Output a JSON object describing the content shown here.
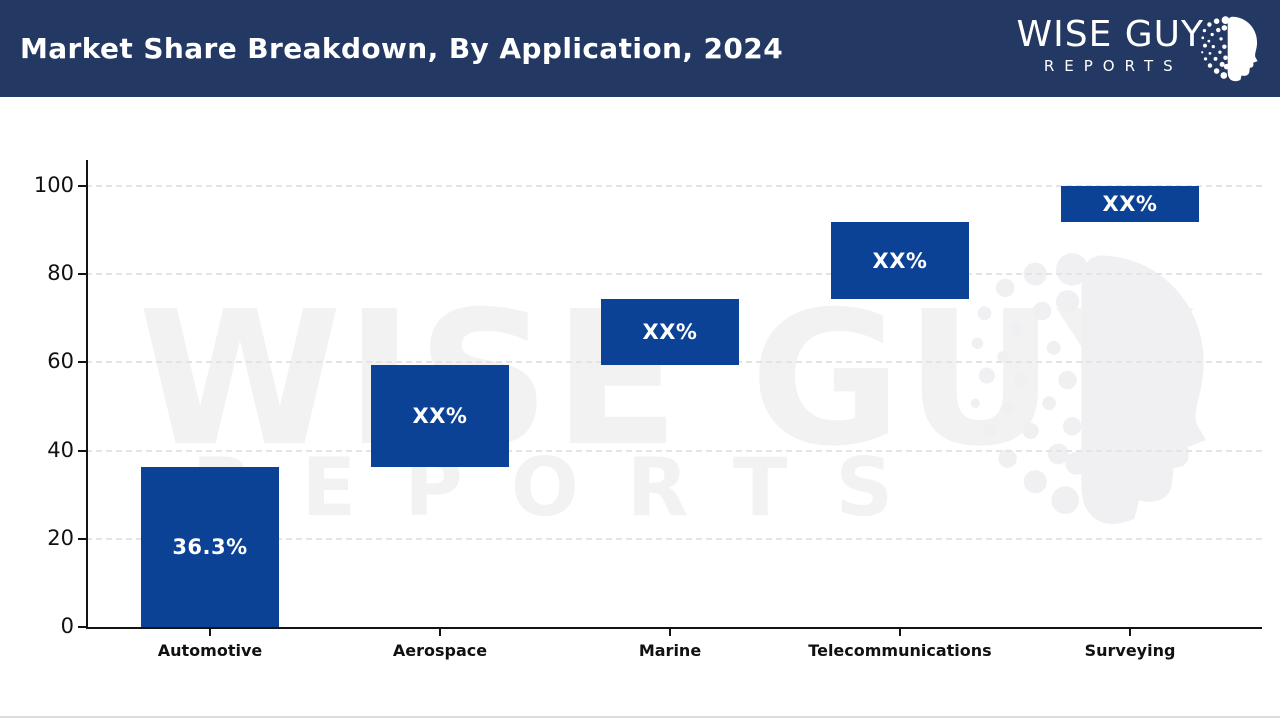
{
  "header": {
    "title": "Market Share Breakdown, By Application, 2024",
    "bg_color": "#233862",
    "logo": {
      "line1": "WISE GUY",
      "line2": "REPORTS"
    }
  },
  "watermark": {
    "line1": "WISE GUY",
    "line2": "REPORTS"
  },
  "chart_data": {
    "type": "bar",
    "subtype": "waterfall",
    "title": "Market Share Breakdown, By Application, 2024",
    "categories": [
      "Automotive",
      "Aerospace",
      "Marine",
      "Telecommunications",
      "Surveying"
    ],
    "segments": [
      {
        "category": "Automotive",
        "start": 0,
        "end": 36.3,
        "label": "36.3%"
      },
      {
        "category": "Aerospace",
        "start": 36.3,
        "end": 59.4,
        "label": "XX%"
      },
      {
        "category": "Marine",
        "start": 59.4,
        "end": 74.4,
        "label": "XX%"
      },
      {
        "category": "Telecommunications",
        "start": 74.4,
        "end": 91.8,
        "label": "XX%"
      },
      {
        "category": "Surveying",
        "start": 91.8,
        "end": 100,
        "label": "XX%"
      }
    ],
    "xlabel": "",
    "ylabel": "",
    "ylim": [
      0,
      100
    ],
    "yticks": [
      0,
      20,
      40,
      60,
      80,
      100
    ],
    "grid": "horizontal-dashed",
    "legend": "none",
    "bar_color": "#0b4296",
    "bar_label_color": "#ffffff",
    "axis_color": "#141414",
    "grid_color": "#e4e4e6"
  }
}
